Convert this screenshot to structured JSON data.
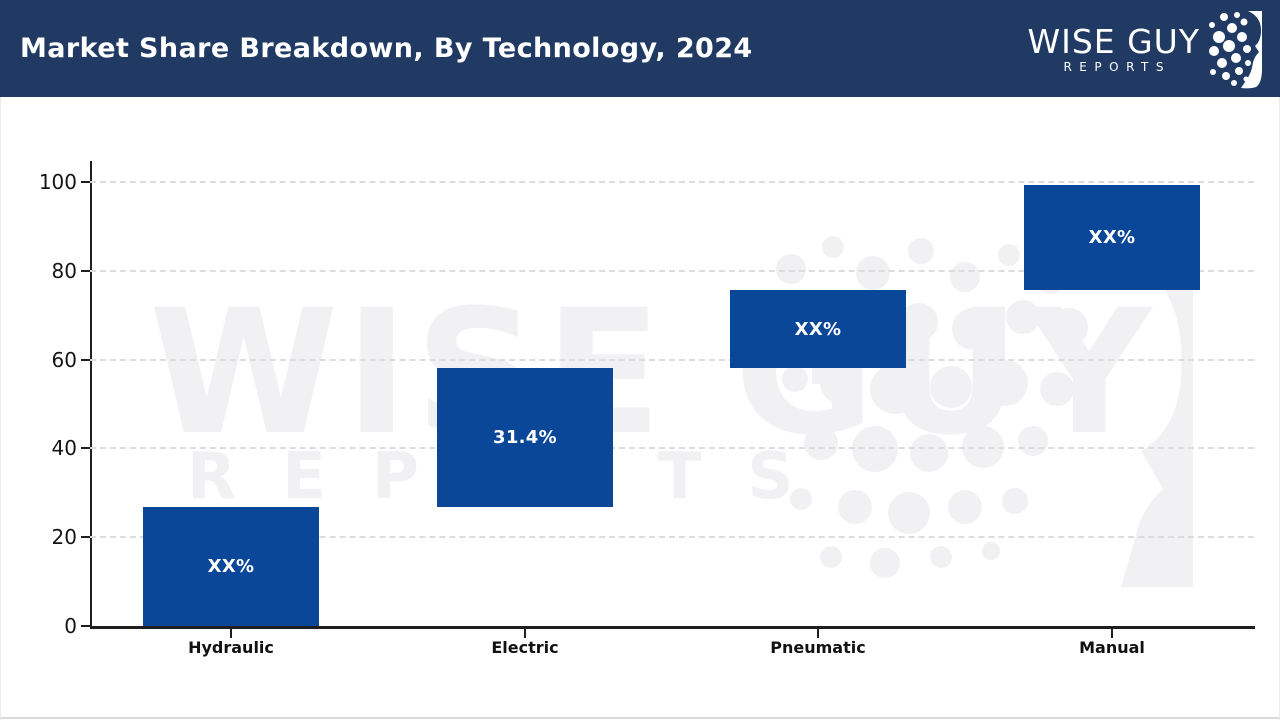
{
  "header": {
    "title": "Market Share Breakdown, By Technology, 2024",
    "logo": {
      "line1": "WISE GUY",
      "line2": "REPORTS"
    }
  },
  "watermark": {
    "line1": "WISE GUY",
    "line2": "REPORTS"
  },
  "colors": {
    "header_bg": "#203a64",
    "bar": "#0b4799",
    "grid": "#dcdcdc",
    "axis": "#1f1f1f",
    "bar_label": "#ffffff",
    "watermark": "#f1f1f4"
  },
  "chart_data": {
    "type": "bar",
    "subtype": "waterfall-floating-bars",
    "title": "Market Share Breakdown, By Technology, 2024",
    "categories": [
      "Hydraulic",
      "Electric",
      "Pneumatic",
      "Manual"
    ],
    "segments": [
      {
        "category": "Hydraulic",
        "start": 0,
        "end": 26.7,
        "label": "XX%"
      },
      {
        "category": "Electric",
        "start": 26.7,
        "end": 58.1,
        "label": "31.4%"
      },
      {
        "category": "Pneumatic",
        "start": 58.1,
        "end": 75.6,
        "label": "XX%"
      },
      {
        "category": "Manual",
        "start": 75.6,
        "end": 99.4,
        "label": "XX%"
      }
    ],
    "yticks": [
      0,
      20,
      40,
      60,
      80,
      100
    ],
    "ylim": [
      0,
      104.5
    ],
    "xlabel": "",
    "ylabel": "",
    "grid": "horizontal-dashed",
    "legend": "none"
  }
}
